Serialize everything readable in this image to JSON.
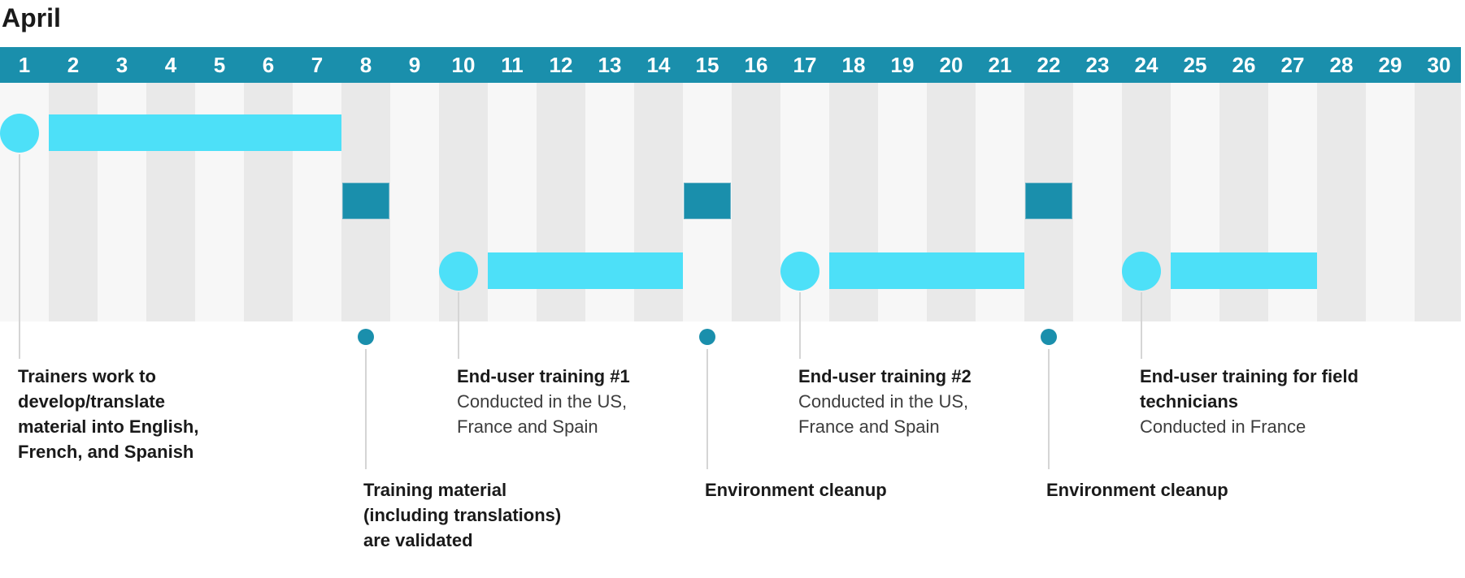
{
  "colors": {
    "teal": "#1a8fac",
    "cyan": "#4de0f8",
    "stripe_light": "#f7f7f7",
    "stripe_dark": "#e9e9e9",
    "leader_line": "#d5d5d5",
    "label_bold": "#1a1a1a",
    "label_regular": "#3d3d3d",
    "day_number": "#ffffff"
  },
  "chart_data": {
    "type": "gantt",
    "month_label": "April",
    "num_days": 30,
    "day_width": 60,
    "day_labels": [
      "1",
      "2",
      "3",
      "4",
      "5",
      "6",
      "7",
      "8",
      "9",
      "10",
      "11",
      "12",
      "13",
      "14",
      "15",
      "16",
      "17",
      "18",
      "19",
      "20",
      "21",
      "22",
      "23",
      "24",
      "25",
      "26",
      "27",
      "28",
      "29",
      "30"
    ],
    "tasks": [
      {
        "id": "develop-translate-material",
        "row": 1,
        "marker": "circle",
        "marker_day": 1,
        "bar_start_day": 2,
        "bar_end_day": 7,
        "label_bold": [
          "Trainers work to",
          "develop/translate",
          "material into English,",
          "French, and Spanish"
        ],
        "label_regular": []
      },
      {
        "id": "end-user-training-1",
        "row": 3,
        "marker": "circle",
        "marker_day": 10,
        "bar_start_day": 11,
        "bar_end_day": 14,
        "label_bold": [
          "End-user training #1"
        ],
        "label_regular": [
          "Conducted in the US,",
          "France and Spain"
        ]
      },
      {
        "id": "end-user-training-2",
        "row": 3,
        "marker": "circle",
        "marker_day": 17,
        "bar_start_day": 18,
        "bar_end_day": 21,
        "label_bold": [
          "End-user training #2"
        ],
        "label_regular": [
          "Conducted in the US,",
          "France and Spain"
        ]
      },
      {
        "id": "end-user-training-field-technicians",
        "row": 3,
        "marker": "circle",
        "marker_day": 24,
        "bar_start_day": 25,
        "bar_end_day": 27,
        "label_bold": [
          "End-user training for field",
          "technicians"
        ],
        "label_regular": [
          "Conducted in France"
        ]
      }
    ],
    "milestones": [
      {
        "id": "training-material-validated",
        "day": 8,
        "label_bold": [
          "Training material",
          "(including translations)",
          "are validated"
        ]
      },
      {
        "id": "environment-cleanup-1",
        "day": 15,
        "label_bold": [
          "Environment cleanup"
        ]
      },
      {
        "id": "environment-cleanup-2",
        "day": 22,
        "label_bold": [
          "Environment cleanup"
        ]
      }
    ]
  }
}
